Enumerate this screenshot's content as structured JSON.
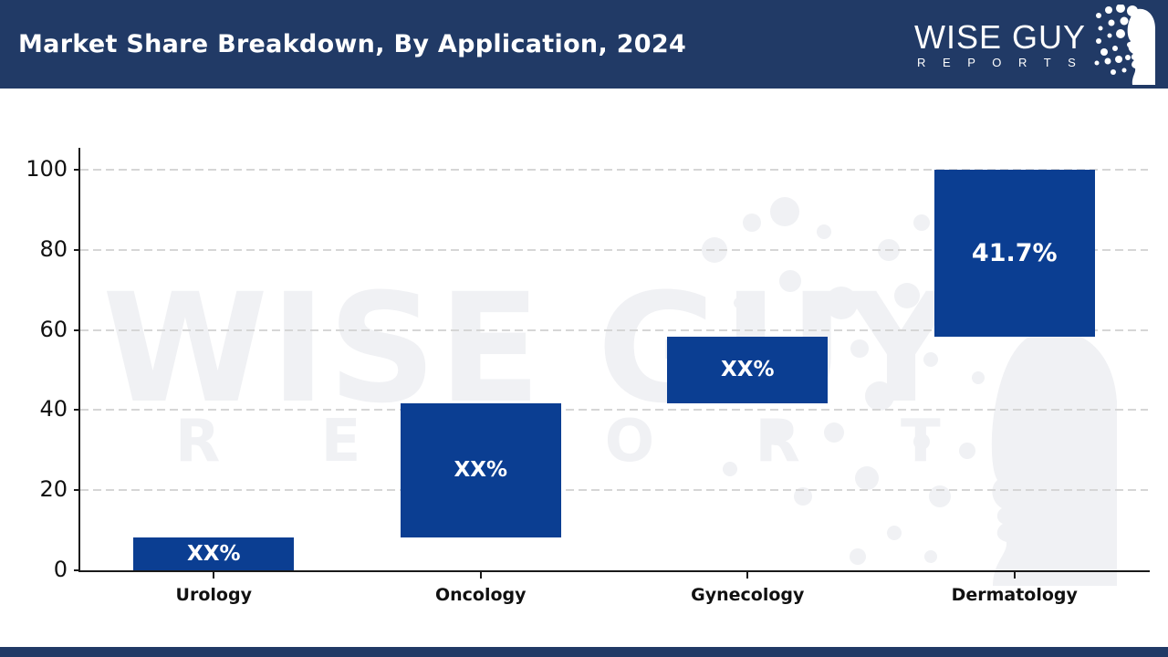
{
  "header": {
    "title": "Market Share Breakdown, By Application, 2024",
    "logo": {
      "line1": "WISE GUY",
      "line2": "R E P O R T S"
    }
  },
  "watermark": {
    "line1": "WISE GUY",
    "line2": "R E P O R T S"
  },
  "chart_data": {
    "type": "bar",
    "subtype": "floating-waterfall",
    "title": "Market Share Breakdown, By Application, 2024",
    "categories": [
      "Urology",
      "Oncology",
      "Gynecology",
      "Dermatology"
    ],
    "series": [
      {
        "name": "Market share (%)",
        "segments": [
          {
            "category": "Urology",
            "start": 0,
            "end": 8.3,
            "value": 8.3,
            "label": "XX%",
            "emphasis": false
          },
          {
            "category": "Oncology",
            "start": 8.3,
            "end": 41.7,
            "value": 33.4,
            "label": "XX%",
            "emphasis": false
          },
          {
            "category": "Gynecology",
            "start": 41.7,
            "end": 58.3,
            "value": 16.6,
            "label": "XX%",
            "emphasis": false
          },
          {
            "category": "Dermatology",
            "start": 58.3,
            "end": 100,
            "value": 41.7,
            "label": "41.7%",
            "emphasis": true
          }
        ]
      }
    ],
    "ylim": [
      0,
      100
    ],
    "yticks": [
      0,
      20,
      40,
      60,
      80,
      100
    ],
    "xlabel": "",
    "ylabel": "",
    "grid": "horizontal-dashed",
    "legend": "none",
    "colors": {
      "bar": "#0b3e92",
      "bar_label": "#ffffff",
      "axis": "#1a1a1a",
      "tick_label": "#111111",
      "gridline": "#d6d6d6",
      "header_bg": "#213a66",
      "footer_bg": "#213a66",
      "watermark": "#f0f1f4"
    }
  }
}
